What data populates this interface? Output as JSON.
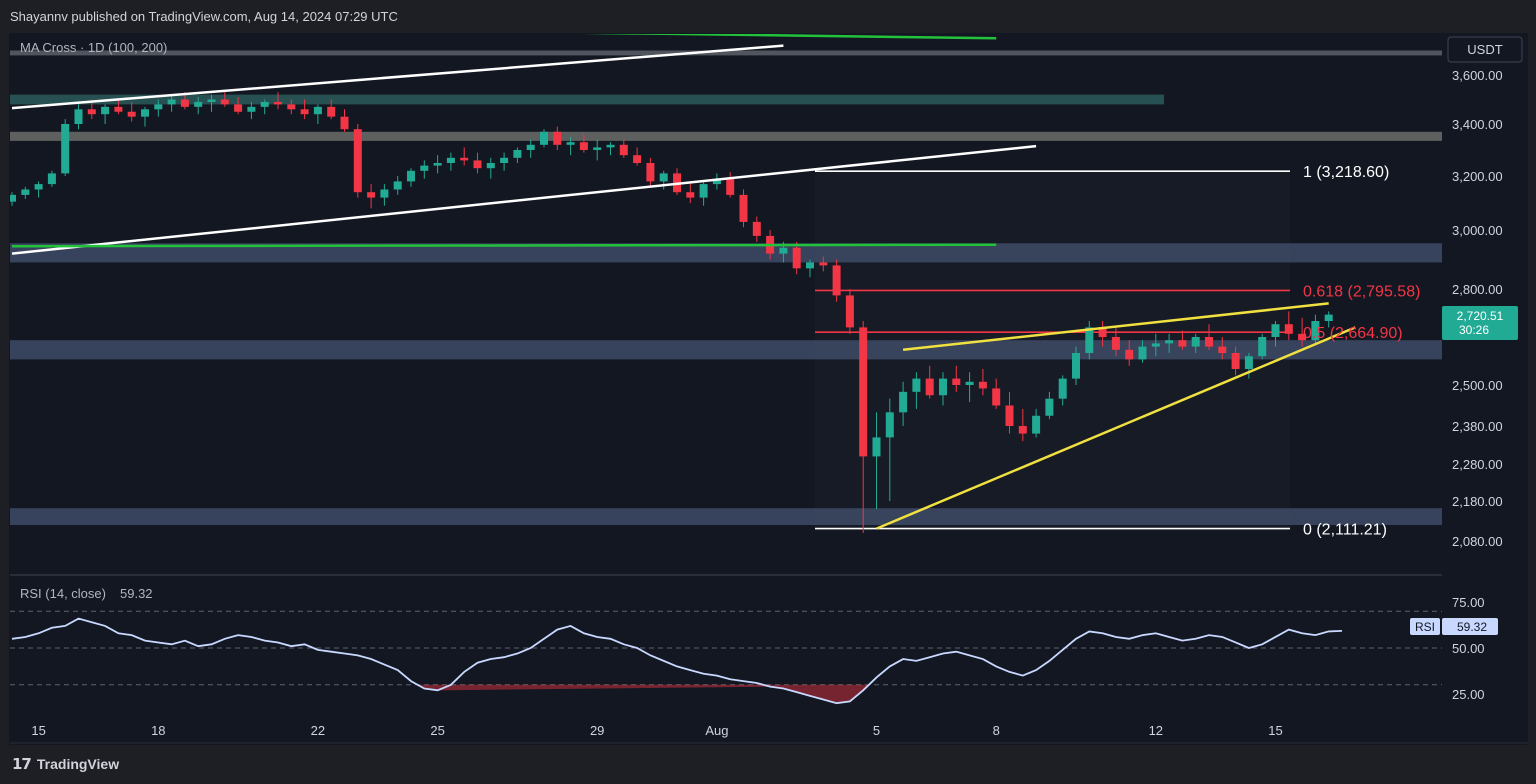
{
  "header": {
    "published": "Shayannv published on TradingView.com, Aug 14, 2024 07:29 UTC"
  },
  "footer": {
    "logo_icon": "tradingview-logo-icon",
    "brand": "TradingView"
  },
  "chart_data": {
    "type": "candlestick",
    "indicator_label": "MA Cross · 1D (100, 200)",
    "currency": "USDT",
    "price_axis": {
      "ticks": [
        3600,
        3400,
        3200,
        3000,
        2800,
        2500,
        2380,
        2280,
        2180,
        2080
      ],
      "tick_labels": [
        "3,600.00",
        "3,400.00",
        "3,200.00",
        "3,000.00",
        "2,800.00",
        "2,500.00",
        "2,380.00",
        "2,280.00",
        "2,180.00",
        "2,080.00"
      ]
    },
    "x_axis": {
      "ticks": [
        {
          "label": "15",
          "index": 2
        },
        {
          "label": "18",
          "index": 11
        },
        {
          "label": "22",
          "index": 23
        },
        {
          "label": "25",
          "index": 32
        },
        {
          "label": "29",
          "index": 44
        },
        {
          "label": "Aug",
          "index": 53
        },
        {
          "label": "5",
          "index": 65
        },
        {
          "label": "8",
          "index": 74
        },
        {
          "label": "12",
          "index": 86
        },
        {
          "label": "15",
          "index": 95
        }
      ]
    },
    "current_price": {
      "value": 2720.51,
      "label": "2,720.51",
      "countdown": "30:26",
      "color": "#22ab94"
    },
    "fibonacci": [
      {
        "level": "1",
        "price": 3218.6,
        "label": "1 (3,218.60)",
        "color": "#ffffff"
      },
      {
        "level": "0.618",
        "price": 2795.58,
        "label": "0.618 (2,795.58)",
        "color": "#f23645"
      },
      {
        "level": "0.5",
        "price": 2664.9,
        "label": "0.5 (2,664.90)",
        "color": "#f23645"
      },
      {
        "level": "0",
        "price": 2111.21,
        "label": "0 (2,111.21)",
        "color": "#ffffff"
      }
    ],
    "zones": [
      {
        "name": "supply-zone-grey",
        "from": 3700,
        "to": 3680,
        "color": "#5d6069"
      },
      {
        "name": "supply-zone-teal",
        "from": 3520,
        "to": 3480,
        "color": "#2b5a5a"
      },
      {
        "name": "resistance-zone-grey",
        "from": 3370,
        "to": 3335,
        "color": "#6b6d6a"
      },
      {
        "name": "resistance-zone-blue",
        "from": 2955,
        "to": 2890,
        "color": "#3e4a66"
      },
      {
        "name": "support-zone-blue",
        "from": 2640,
        "to": 2580,
        "color": "#3e4a66"
      },
      {
        "name": "demand-zone-blue",
        "from": 2162,
        "to": 2120,
        "color": "#3e4a66"
      }
    ],
    "candles": [
      [
        3105,
        3140,
        3090,
        3130
      ],
      [
        3130,
        3160,
        3115,
        3150
      ],
      [
        3150,
        3180,
        3120,
        3170
      ],
      [
        3170,
        3220,
        3160,
        3210
      ],
      [
        3210,
        3420,
        3200,
        3400
      ],
      [
        3400,
        3480,
        3380,
        3460
      ],
      [
        3460,
        3500,
        3420,
        3440
      ],
      [
        3440,
        3480,
        3400,
        3470
      ],
      [
        3470,
        3500,
        3440,
        3450
      ],
      [
        3450,
        3490,
        3410,
        3430
      ],
      [
        3430,
        3470,
        3390,
        3460
      ],
      [
        3460,
        3500,
        3430,
        3480
      ],
      [
        3480,
        3520,
        3450,
        3500
      ],
      [
        3500,
        3530,
        3460,
        3470
      ],
      [
        3470,
        3510,
        3440,
        3490
      ],
      [
        3490,
        3520,
        3450,
        3500
      ],
      [
        3500,
        3530,
        3470,
        3480
      ],
      [
        3480,
        3510,
        3440,
        3450
      ],
      [
        3450,
        3490,
        3420,
        3470
      ],
      [
        3470,
        3500,
        3440,
        3490
      ],
      [
        3490,
        3530,
        3460,
        3480
      ],
      [
        3480,
        3500,
        3440,
        3460
      ],
      [
        3460,
        3500,
        3420,
        3440
      ],
      [
        3440,
        3480,
        3400,
        3470
      ],
      [
        3470,
        3500,
        3420,
        3430
      ],
      [
        3430,
        3460,
        3370,
        3380
      ],
      [
        3380,
        3400,
        3120,
        3140
      ],
      [
        3140,
        3170,
        3080,
        3120
      ],
      [
        3120,
        3170,
        3090,
        3150
      ],
      [
        3150,
        3200,
        3130,
        3180
      ],
      [
        3180,
        3230,
        3160,
        3220
      ],
      [
        3220,
        3260,
        3190,
        3240
      ],
      [
        3240,
        3280,
        3210,
        3250
      ],
      [
        3250,
        3290,
        3220,
        3270
      ],
      [
        3270,
        3310,
        3240,
        3260
      ],
      [
        3260,
        3290,
        3210,
        3230
      ],
      [
        3230,
        3270,
        3190,
        3250
      ],
      [
        3250,
        3290,
        3220,
        3270
      ],
      [
        3270,
        3310,
        3250,
        3300
      ],
      [
        3300,
        3340,
        3270,
        3320
      ],
      [
        3320,
        3380,
        3310,
        3370
      ],
      [
        3370,
        3390,
        3300,
        3320
      ],
      [
        3320,
        3350,
        3280,
        3330
      ],
      [
        3330,
        3360,
        3290,
        3300
      ],
      [
        3300,
        3340,
        3260,
        3310
      ],
      [
        3310,
        3330,
        3280,
        3320
      ],
      [
        3320,
        3340,
        3270,
        3280
      ],
      [
        3280,
        3310,
        3240,
        3250
      ],
      [
        3250,
        3270,
        3160,
        3180
      ],
      [
        3180,
        3220,
        3150,
        3210
      ],
      [
        3210,
        3230,
        3130,
        3140
      ],
      [
        3140,
        3180,
        3100,
        3120
      ],
      [
        3120,
        3180,
        3090,
        3170
      ],
      [
        3170,
        3210,
        3150,
        3190
      ],
      [
        3190,
        3215,
        3120,
        3130
      ],
      [
        3130,
        3150,
        3010,
        3030
      ],
      [
        3030,
        3050,
        2960,
        2980
      ],
      [
        2980,
        3000,
        2900,
        2920
      ],
      [
        2920,
        2960,
        2890,
        2940
      ],
      [
        2940,
        2960,
        2850,
        2870
      ],
      [
        2870,
        2900,
        2840,
        2890
      ],
      [
        2890,
        2910,
        2860,
        2880
      ],
      [
        2880,
        2900,
        2760,
        2780
      ],
      [
        2780,
        2800,
        2660,
        2680
      ],
      [
        2680,
        2700,
        2100,
        2300
      ],
      [
        2300,
        2420,
        2160,
        2350
      ],
      [
        2350,
        2460,
        2180,
        2420
      ],
      [
        2420,
        2510,
        2380,
        2480
      ],
      [
        2480,
        2540,
        2430,
        2520
      ],
      [
        2520,
        2560,
        2460,
        2470
      ],
      [
        2470,
        2540,
        2440,
        2520
      ],
      [
        2520,
        2560,
        2480,
        2500
      ],
      [
        2500,
        2540,
        2450,
        2510
      ],
      [
        2510,
        2550,
        2470,
        2490
      ],
      [
        2490,
        2520,
        2430,
        2440
      ],
      [
        2440,
        2480,
        2360,
        2380
      ],
      [
        2380,
        2430,
        2340,
        2360
      ],
      [
        2360,
        2430,
        2350,
        2410
      ],
      [
        2410,
        2480,
        2400,
        2460
      ],
      [
        2460,
        2530,
        2440,
        2520
      ],
      [
        2520,
        2620,
        2500,
        2600
      ],
      [
        2600,
        2700,
        2580,
        2680
      ],
      [
        2680,
        2700,
        2620,
        2650
      ],
      [
        2650,
        2680,
        2590,
        2610
      ],
      [
        2610,
        2640,
        2560,
        2580
      ],
      [
        2580,
        2640,
        2570,
        2620
      ],
      [
        2620,
        2660,
        2590,
        2630
      ],
      [
        2630,
        2660,
        2600,
        2640
      ],
      [
        2640,
        2670,
        2610,
        2620
      ],
      [
        2620,
        2660,
        2600,
        2650
      ],
      [
        2650,
        2690,
        2610,
        2620
      ],
      [
        2620,
        2650,
        2580,
        2600
      ],
      [
        2600,
        2620,
        2530,
        2550
      ],
      [
        2550,
        2600,
        2520,
        2590
      ],
      [
        2590,
        2660,
        2580,
        2650
      ],
      [
        2650,
        2700,
        2620,
        2690
      ],
      [
        2690,
        2730,
        2640,
        2660
      ],
      [
        2660,
        2710,
        2620,
        2640
      ],
      [
        2640,
        2720,
        2630,
        2700
      ],
      [
        2700,
        2730,
        2680,
        2720
      ]
    ],
    "trendlines": [
      {
        "name": "rising-channel-upper-line",
        "color": "#ffffff",
        "points": [
          [
            0,
            3465
          ],
          [
            58,
            3720
          ]
        ]
      },
      {
        "name": "rising-channel-lower-line",
        "color": "#ffffff",
        "points": [
          [
            0,
            2920
          ],
          [
            77,
            3315
          ]
        ]
      },
      {
        "name": "ma-200-line",
        "color": "#22c33a",
        "points": [
          [
            0,
            2945
          ],
          [
            74,
            2950
          ]
        ]
      },
      {
        "name": "ma-100-line",
        "color": "#22c33a",
        "points": [
          [
            5,
            3800
          ],
          [
            74,
            3750
          ]
        ]
      },
      {
        "name": "rising-wedge-upper-line",
        "color": "#f0e040",
        "points": [
          [
            67,
            2610
          ],
          [
            99,
            2755
          ]
        ]
      },
      {
        "name": "rising-wedge-lower-line",
        "color": "#f0e040",
        "points": [
          [
            65,
            2111
          ],
          [
            101,
            2680
          ]
        ]
      }
    ],
    "rsi": {
      "label": "RSI (14, close)",
      "value": 59.32,
      "value_label": "59.32",
      "tag": "RSI",
      "ticks": [
        75,
        50,
        25
      ],
      "tick_labels": [
        "75.00",
        "50.00",
        "25.00"
      ],
      "overbought": 70,
      "middle": 50,
      "oversold": 30,
      "values": [
        55,
        56,
        58,
        61,
        62,
        66,
        64,
        62,
        58,
        57,
        54,
        53,
        52,
        54,
        51,
        52,
        55,
        57,
        56,
        54,
        53,
        51,
        52,
        49,
        48,
        47,
        46,
        44,
        41,
        38,
        32,
        28,
        27,
        30,
        37,
        42,
        44,
        45,
        47,
        50,
        55,
        60,
        62,
        58,
        56,
        55,
        52,
        50,
        46,
        43,
        40,
        38,
        36,
        35,
        33,
        32,
        31,
        29,
        28,
        26,
        24,
        22,
        20,
        21,
        27,
        34,
        40,
        44,
        43,
        45,
        47,
        48,
        46,
        44,
        40,
        37,
        35,
        38,
        43,
        49,
        55,
        59,
        58,
        56,
        55,
        57,
        58,
        56,
        54,
        55,
        57,
        56,
        53,
        50,
        52,
        56,
        60,
        58,
        57,
        59,
        59.32
      ]
    }
  }
}
